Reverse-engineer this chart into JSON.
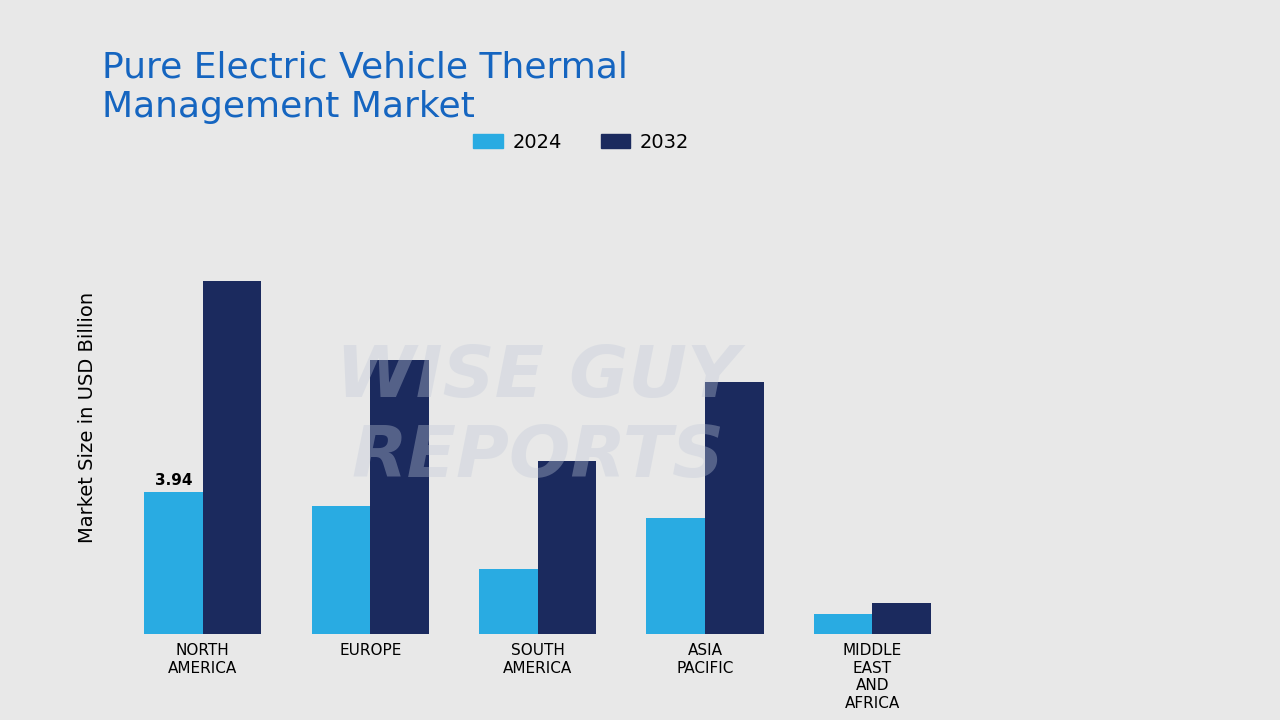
{
  "title": "Pure Electric Vehicle Thermal\nManagement Market",
  "ylabel": "Market Size in USD Billion",
  "categories": [
    "NORTH\nAMERICA",
    "EUROPE",
    "SOUTH\nAMERICA",
    "ASIA\nPACIFIC",
    "MIDDLE\nEAST\nAND\nAFRICA"
  ],
  "values_2024": [
    3.94,
    3.55,
    1.8,
    3.2,
    0.55
  ],
  "values_2032": [
    9.8,
    7.6,
    4.8,
    7.0,
    0.85
  ],
  "color_2024": "#29ABE2",
  "color_2032": "#1B2A5E",
  "annotation_text": "3.94",
  "annotation_bar": 0,
  "background_color": "#E8E8E8",
  "title_color": "#1565C0",
  "right_panel_color": "#1B2A5E",
  "legend_labels": [
    "2024",
    "2032"
  ],
  "bar_width": 0.35,
  "ylim": [
    0,
    12
  ],
  "title_fontsize": 26,
  "ylabel_fontsize": 14,
  "tick_fontsize": 11,
  "legend_fontsize": 14
}
